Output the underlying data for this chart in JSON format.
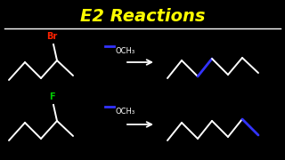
{
  "title": "E2 Reactions",
  "title_color": "#FFFF00",
  "title_fontsize": 14,
  "bg_color": "#000000",
  "line_color": "#FFFFFF",
  "row1_halogen": "Br",
  "row1_halogen_color": "#FF2200",
  "row2_halogen": "F",
  "row2_halogen_color": "#00CC00",
  "och3_color": "#FFFFFF",
  "arrow_color": "#FFFFFF",
  "double_bond_color": "#3333FF",
  "lw": 1.4
}
